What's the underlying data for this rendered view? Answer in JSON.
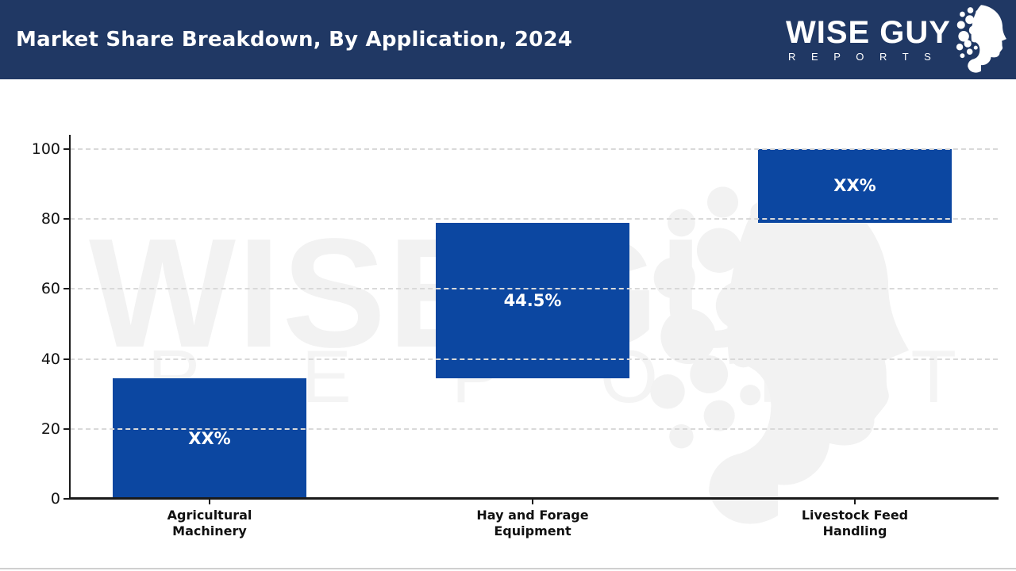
{
  "header": {
    "title": "Market Share Breakdown, By Application, 2024",
    "logo": {
      "wordmark": "WISE GUY",
      "subtext": "R E P O R T S"
    },
    "colors": {
      "background": "#203864",
      "text": "#ffffff"
    }
  },
  "watermark": {
    "wordmark": "WISE GUY",
    "subtext": "R E P O R T S"
  },
  "chart_data": {
    "type": "bar",
    "subtype": "stacked_waterfall",
    "title": "Market Share Breakdown, By Application, 2024",
    "categories": [
      "Agricultural Machinery",
      "Hay and Forage Equipment",
      "Livestock Feed Handling"
    ],
    "category_label_lines": [
      [
        "Agricultural",
        "Machinery"
      ],
      [
        "Hay and Forage",
        "Equipment"
      ],
      [
        "Livestock Feed",
        "Handling"
      ]
    ],
    "bars": [
      {
        "category": "Agricultural Machinery",
        "label": "XX%",
        "start": 0,
        "end": 34.5
      },
      {
        "category": "Hay and Forage Equipment",
        "label": "44.5%",
        "start": 34.5,
        "end": 79
      },
      {
        "category": "Livestock Feed Handling",
        "label": "XX%",
        "start": 79,
        "end": 100
      }
    ],
    "xlabel": "",
    "ylabel": "",
    "y_ticks": [
      0,
      20,
      40,
      60,
      80,
      100
    ],
    "ylim": [
      0,
      104
    ],
    "grid": "horizontal-dashed",
    "legend": "none",
    "bar_color": "#0c47a1",
    "bar_label_color": "#ffffff",
    "axis_color": "#1a1a1a",
    "gridline_color": "#d9d9d9"
  }
}
